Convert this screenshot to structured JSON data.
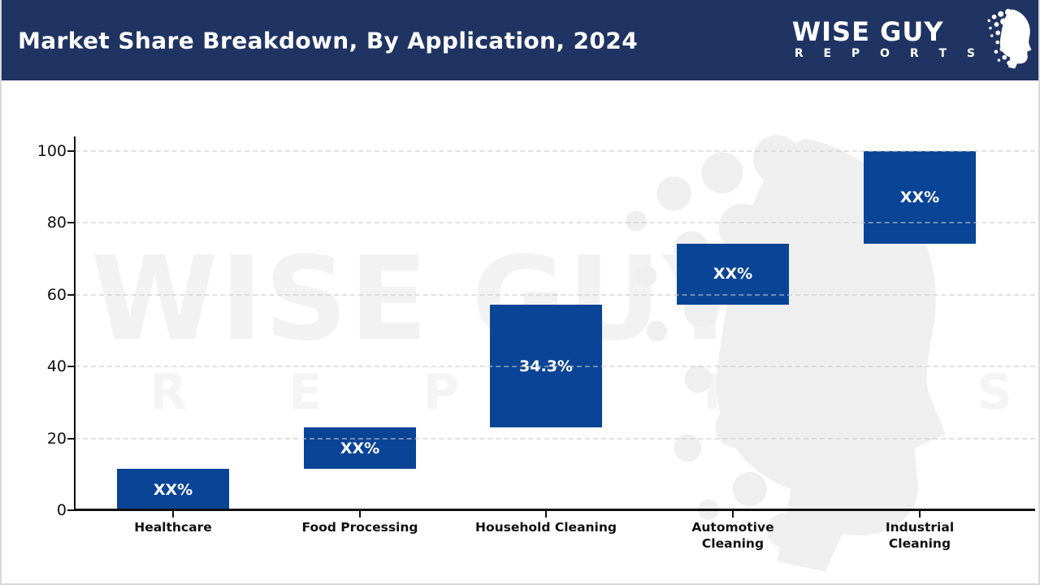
{
  "header": {
    "title": "Market Share Breakdown, By Application, 2024",
    "bg_color": "#1f3463",
    "logo": {
      "line1": "WISE GUY",
      "line2": "R E P O R T S"
    }
  },
  "watermark": {
    "line1": "WISE GUY",
    "line2": "R E P O R T S"
  },
  "chart_data": {
    "type": "bar",
    "subtype": "waterfall",
    "title": "Market Share Breakdown, By Application, 2024",
    "categories": [
      "Healthcare",
      "Food Processing",
      "Household Cleaning",
      "Automotive\nCleaning",
      "Industrial\nCleaning"
    ],
    "segments": [
      {
        "category": "Healthcare",
        "start": 0,
        "end": 11.5,
        "value_label": "XX%"
      },
      {
        "category": "Food Processing",
        "start": 11.5,
        "end": 23.0,
        "value_label": "XX%"
      },
      {
        "category": "Household Cleaning",
        "start": 23.0,
        "end": 57.3,
        "value_label": "34.3%"
      },
      {
        "category": "Automotive Cleaning",
        "start": 57.3,
        "end": 74.3,
        "value_label": "XX%"
      },
      {
        "category": "Industrial Cleaning",
        "start": 74.3,
        "end": 100.0,
        "value_label": "XX%"
      }
    ],
    "values": [
      11.5,
      11.5,
      34.3,
      17.0,
      25.7
    ],
    "bar_labels": [
      "XX%",
      "XX%",
      "34.3%",
      "XX%",
      "XX%"
    ],
    "xlabel": "",
    "ylabel": "",
    "ylim": [
      0,
      100
    ],
    "yticks": [
      0,
      20,
      40,
      60,
      80,
      100
    ],
    "grid": true,
    "grid_style": "dashed-horizontal",
    "legend": "none",
    "bar_color": "#0a4496",
    "label_color": "#ffffff"
  }
}
